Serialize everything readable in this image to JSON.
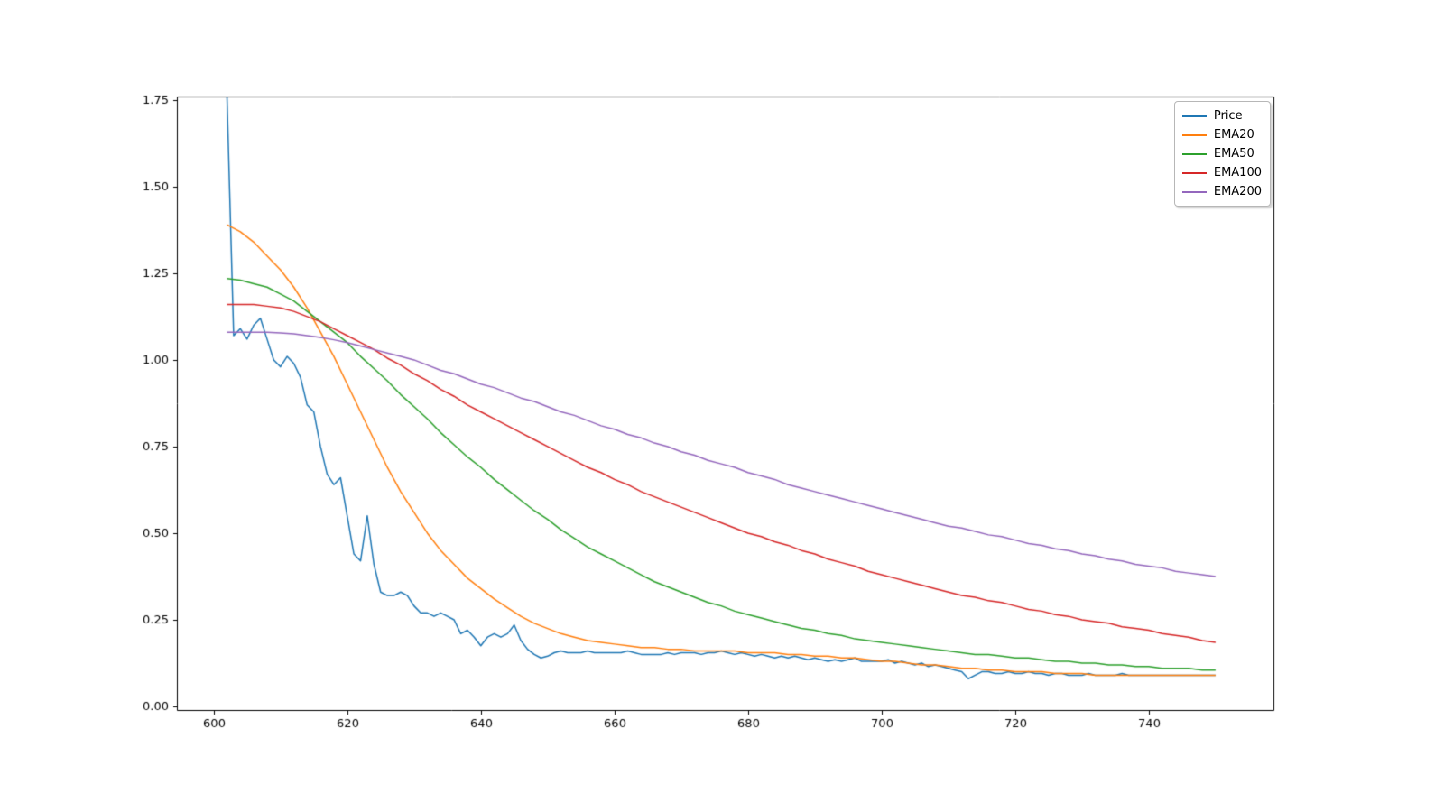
{
  "figure": {
    "background": "#ffffff",
    "frame_color": "#000000",
    "tick_color": "#000000",
    "tick_label_color": "#000000"
  },
  "legend": {
    "position": "upper right"
  },
  "chart_data": {
    "type": "line",
    "title": "",
    "xlabel": "",
    "ylabel": "",
    "grid": false,
    "legend_position": "upper right",
    "xlim": [
      594.5,
      758.8
    ],
    "ylim": [
      -0.013,
      1.76
    ],
    "x_ticks": [
      600,
      620,
      640,
      660,
      680,
      700,
      720,
      740
    ],
    "x_tick_labels": [
      "600",
      "620",
      "640",
      "660",
      "680",
      "700",
      "720",
      "740"
    ],
    "y_ticks": [
      0.0,
      0.25,
      0.5,
      0.75,
      1.0,
      1.25,
      1.5,
      1.75
    ],
    "y_tick_labels": [
      "0.00",
      "0.25",
      "0.50",
      "0.75",
      "1.00",
      "1.25",
      "1.50",
      "1.75"
    ],
    "series": [
      {
        "name": "Price",
        "color": "#1f77b4",
        "x_start": 602,
        "x_step": 1,
        "values": [
          1.76,
          1.07,
          1.09,
          1.06,
          1.1,
          1.12,
          1.06,
          1.0,
          0.98,
          1.01,
          0.99,
          0.95,
          0.87,
          0.85,
          0.75,
          0.67,
          0.64,
          0.66,
          0.55,
          0.44,
          0.42,
          0.55,
          0.41,
          0.33,
          0.32,
          0.32,
          0.33,
          0.32,
          0.29,
          0.27,
          0.27,
          0.26,
          0.27,
          0.26,
          0.25,
          0.21,
          0.22,
          0.2,
          0.175,
          0.2,
          0.21,
          0.2,
          0.21,
          0.235,
          0.19,
          0.165,
          0.15,
          0.14,
          0.145,
          0.155,
          0.16,
          0.155,
          0.155,
          0.155,
          0.16,
          0.155,
          0.155,
          0.155,
          0.155,
          0.155,
          0.16,
          0.155,
          0.15,
          0.15,
          0.15,
          0.15,
          0.155,
          0.15,
          0.155,
          0.155,
          0.155,
          0.15,
          0.155,
          0.155,
          0.16,
          0.155,
          0.15,
          0.155,
          0.15,
          0.145,
          0.15,
          0.145,
          0.14,
          0.145,
          0.14,
          0.145,
          0.14,
          0.135,
          0.14,
          0.135,
          0.13,
          0.135,
          0.13,
          0.135,
          0.14,
          0.13,
          0.13,
          0.13,
          0.13,
          0.135,
          0.125,
          0.13,
          0.125,
          0.12,
          0.125,
          0.115,
          0.12,
          0.115,
          0.11,
          0.105,
          0.1,
          0.08,
          0.09,
          0.1,
          0.1,
          0.095,
          0.095,
          0.1,
          0.095,
          0.095,
          0.1,
          0.095,
          0.095,
          0.09,
          0.095,
          0.095,
          0.09,
          0.09,
          0.09,
          0.095,
          0.09,
          0.09,
          0.09,
          0.09,
          0.095,
          0.09,
          0.09,
          0.09,
          0.09,
          0.09,
          0.09,
          0.09,
          0.09,
          0.09,
          0.09,
          0.09,
          0.09,
          0.09,
          0.09
        ]
      },
      {
        "name": "EMA20",
        "color": "#ff7f0e",
        "x_start": 602,
        "x_step": 2,
        "values": [
          1.39,
          1.37,
          1.34,
          1.3,
          1.26,
          1.21,
          1.15,
          1.08,
          1.01,
          0.93,
          0.85,
          0.77,
          0.69,
          0.62,
          0.56,
          0.5,
          0.45,
          0.41,
          0.37,
          0.34,
          0.31,
          0.285,
          0.26,
          0.24,
          0.225,
          0.21,
          0.2,
          0.19,
          0.185,
          0.18,
          0.175,
          0.17,
          0.17,
          0.165,
          0.165,
          0.16,
          0.16,
          0.16,
          0.16,
          0.155,
          0.155,
          0.155,
          0.15,
          0.15,
          0.145,
          0.145,
          0.14,
          0.14,
          0.135,
          0.13,
          0.13,
          0.125,
          0.12,
          0.12,
          0.115,
          0.11,
          0.11,
          0.105,
          0.105,
          0.1,
          0.1,
          0.1,
          0.095,
          0.095,
          0.095,
          0.09,
          0.09,
          0.09,
          0.09,
          0.09,
          0.09,
          0.09,
          0.09,
          0.09,
          0.09
        ]
      },
      {
        "name": "EMA50",
        "color": "#2ca02c",
        "x_start": 602,
        "x_step": 2,
        "values": [
          1.235,
          1.23,
          1.22,
          1.21,
          1.19,
          1.17,
          1.14,
          1.11,
          1.08,
          1.05,
          1.01,
          0.975,
          0.94,
          0.9,
          0.865,
          0.83,
          0.79,
          0.755,
          0.72,
          0.69,
          0.655,
          0.625,
          0.595,
          0.565,
          0.54,
          0.51,
          0.485,
          0.46,
          0.44,
          0.42,
          0.4,
          0.38,
          0.36,
          0.345,
          0.33,
          0.315,
          0.3,
          0.29,
          0.275,
          0.265,
          0.255,
          0.245,
          0.235,
          0.225,
          0.22,
          0.21,
          0.205,
          0.195,
          0.19,
          0.185,
          0.18,
          0.175,
          0.17,
          0.165,
          0.16,
          0.155,
          0.15,
          0.15,
          0.145,
          0.14,
          0.14,
          0.135,
          0.13,
          0.13,
          0.125,
          0.125,
          0.12,
          0.12,
          0.115,
          0.115,
          0.11,
          0.11,
          0.11,
          0.105,
          0.105
        ]
      },
      {
        "name": "EMA100",
        "color": "#d62728",
        "x_start": 602,
        "x_step": 2,
        "values": [
          1.16,
          1.16,
          1.16,
          1.155,
          1.15,
          1.14,
          1.125,
          1.11,
          1.09,
          1.07,
          1.05,
          1.03,
          1.005,
          0.985,
          0.96,
          0.94,
          0.915,
          0.895,
          0.87,
          0.85,
          0.83,
          0.81,
          0.79,
          0.77,
          0.75,
          0.73,
          0.71,
          0.69,
          0.675,
          0.655,
          0.64,
          0.62,
          0.605,
          0.59,
          0.575,
          0.56,
          0.545,
          0.53,
          0.515,
          0.5,
          0.49,
          0.475,
          0.465,
          0.45,
          0.44,
          0.425,
          0.415,
          0.405,
          0.39,
          0.38,
          0.37,
          0.36,
          0.35,
          0.34,
          0.33,
          0.32,
          0.315,
          0.305,
          0.3,
          0.29,
          0.28,
          0.275,
          0.265,
          0.26,
          0.25,
          0.245,
          0.24,
          0.23,
          0.225,
          0.22,
          0.21,
          0.205,
          0.2,
          0.19,
          0.185
        ]
      },
      {
        "name": "EMA200",
        "color": "#9467bd",
        "x_start": 602,
        "x_step": 2,
        "values": [
          1.08,
          1.08,
          1.08,
          1.08,
          1.078,
          1.075,
          1.07,
          1.065,
          1.058,
          1.05,
          1.04,
          1.03,
          1.02,
          1.01,
          1.0,
          0.985,
          0.97,
          0.96,
          0.945,
          0.93,
          0.92,
          0.905,
          0.89,
          0.88,
          0.865,
          0.85,
          0.84,
          0.825,
          0.81,
          0.8,
          0.785,
          0.775,
          0.76,
          0.75,
          0.735,
          0.725,
          0.71,
          0.7,
          0.69,
          0.675,
          0.665,
          0.655,
          0.64,
          0.63,
          0.62,
          0.61,
          0.6,
          0.59,
          0.58,
          0.57,
          0.56,
          0.55,
          0.54,
          0.53,
          0.52,
          0.515,
          0.505,
          0.495,
          0.49,
          0.48,
          0.47,
          0.465,
          0.455,
          0.45,
          0.44,
          0.435,
          0.425,
          0.42,
          0.41,
          0.405,
          0.4,
          0.39,
          0.385,
          0.38,
          0.375
        ]
      }
    ]
  }
}
